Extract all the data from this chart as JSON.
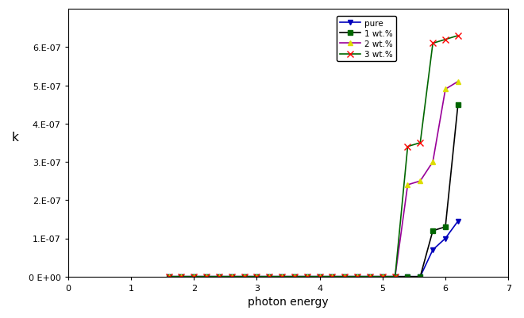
{
  "title": "",
  "xlabel": "photon energy",
  "ylabel": "k",
  "xlim": [
    0,
    7
  ],
  "ylim": [
    0,
    7e-07
  ],
  "yticks": [
    0,
    1e-07,
    2e-07,
    3e-07,
    4e-07,
    5e-07,
    6e-07
  ],
  "xticks": [
    0,
    1,
    2,
    3,
    4,
    5,
    6,
    7
  ],
  "series": [
    {
      "label": "pure",
      "line_color": "#0000bb",
      "marker": "v",
      "mfc": "#0000bb",
      "mec": "#0000bb",
      "ms": 4,
      "lw": 1.2,
      "x": [
        1.6,
        1.8,
        2.0,
        2.2,
        2.4,
        2.6,
        2.8,
        3.0,
        3.2,
        3.4,
        3.6,
        3.8,
        4.0,
        4.2,
        4.4,
        4.6,
        4.8,
        5.0,
        5.2,
        5.4,
        5.6,
        5.8,
        6.0,
        6.2
      ],
      "y": [
        0,
        0,
        0,
        0,
        0,
        0,
        0,
        0,
        0,
        0,
        0,
        0,
        0,
        0,
        0,
        0,
        0,
        0,
        0,
        0,
        0,
        7e-08,
        1e-07,
        1.45e-07
      ]
    },
    {
      "label": "1 wt.%",
      "line_color": "#000000",
      "marker": "s",
      "mfc": "#006600",
      "mec": "#006600",
      "ms": 5,
      "lw": 1.2,
      "x": [
        1.6,
        1.8,
        2.0,
        2.2,
        2.4,
        2.6,
        2.8,
        3.0,
        3.2,
        3.4,
        3.6,
        3.8,
        4.0,
        4.2,
        4.4,
        4.6,
        4.8,
        5.0,
        5.2,
        5.4,
        5.6,
        5.8,
        6.0,
        6.2
      ],
      "y": [
        0,
        0,
        0,
        0,
        0,
        0,
        0,
        0,
        0,
        0,
        0,
        0,
        0,
        0,
        0,
        0,
        0,
        0,
        0,
        0,
        0,
        1.2e-07,
        1.3e-07,
        4.5e-07
      ]
    },
    {
      "label": "2 wt.%",
      "line_color": "#990099",
      "marker": "^",
      "mfc": "#dddd00",
      "mec": "#dddd00",
      "ms": 5,
      "lw": 1.2,
      "x": [
        1.6,
        1.8,
        2.0,
        2.2,
        2.4,
        2.6,
        2.8,
        3.0,
        3.2,
        3.4,
        3.6,
        3.8,
        4.0,
        4.2,
        4.4,
        4.6,
        4.8,
        5.0,
        5.2,
        5.4,
        5.6,
        5.8,
        6.0,
        6.2
      ],
      "y": [
        0,
        0,
        0,
        0,
        0,
        0,
        0,
        0,
        0,
        0,
        0,
        0,
        0,
        0,
        0,
        0,
        0,
        0,
        0,
        2.4e-07,
        2.5e-07,
        3e-07,
        4.9e-07,
        5.1e-07
      ]
    },
    {
      "label": "3 wt.%",
      "line_color": "#006600",
      "marker": "x",
      "mfc": "#ff0000",
      "mec": "#ff0000",
      "ms": 6,
      "lw": 1.2,
      "x": [
        1.6,
        1.8,
        2.0,
        2.2,
        2.4,
        2.6,
        2.8,
        3.0,
        3.2,
        3.4,
        3.6,
        3.8,
        4.0,
        4.2,
        4.4,
        4.6,
        4.8,
        5.0,
        5.2,
        5.4,
        5.6,
        5.8,
        6.0,
        6.2
      ],
      "y": [
        0,
        0,
        0,
        0,
        0,
        0,
        0,
        0,
        0,
        0,
        0,
        0,
        0,
        0,
        0,
        0,
        0,
        0,
        0,
        3.4e-07,
        3.5e-07,
        6.1e-07,
        6.2e-07,
        6.3e-07
      ]
    }
  ],
  "background_color": "#ffffff",
  "figsize": [
    6.6,
    4.02
  ],
  "dpi": 100
}
